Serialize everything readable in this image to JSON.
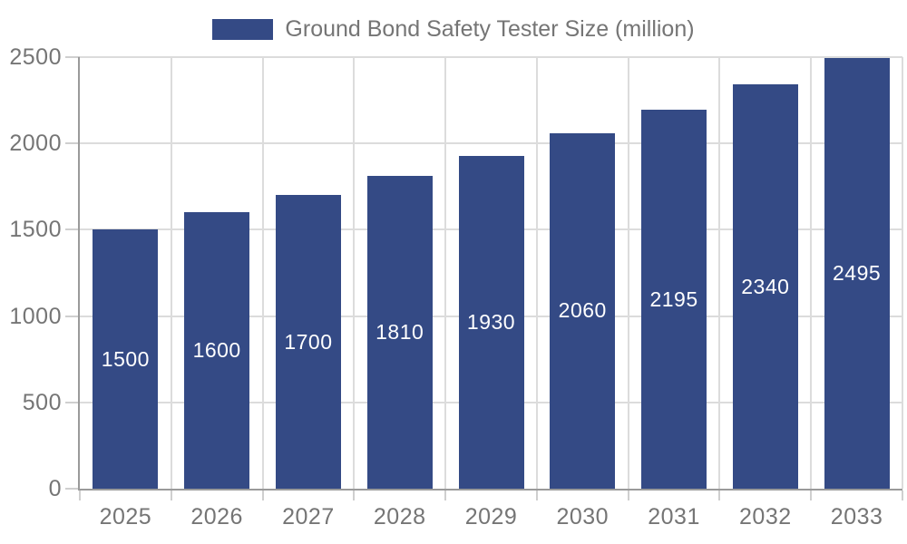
{
  "legend": {
    "label": "Ground Bond Safety Tester Size (million)"
  },
  "chart_data": {
    "type": "bar",
    "title": "Ground Bond Safety Tester Size (million)",
    "categories": [
      "2025",
      "2026",
      "2027",
      "2028",
      "2029",
      "2030",
      "2031",
      "2032",
      "2033"
    ],
    "values": [
      1500,
      1600,
      1700,
      1810,
      1930,
      2060,
      2195,
      2340,
      2495
    ],
    "xlabel": "",
    "ylabel": "",
    "ylim": [
      0,
      2500
    ],
    "yticks": [
      0,
      500,
      1000,
      1500,
      2000,
      2500
    ],
    "grid": true,
    "legend_position": "top",
    "colors": {
      "bar": "#344A85",
      "bar_label": "#FFFFFF",
      "axis_text": "#757575",
      "grid_line": "#DCDCDC",
      "tick_line": "#CFCFCF",
      "axis_line": "#9A9A9A",
      "background": "#FFFFFF"
    }
  }
}
